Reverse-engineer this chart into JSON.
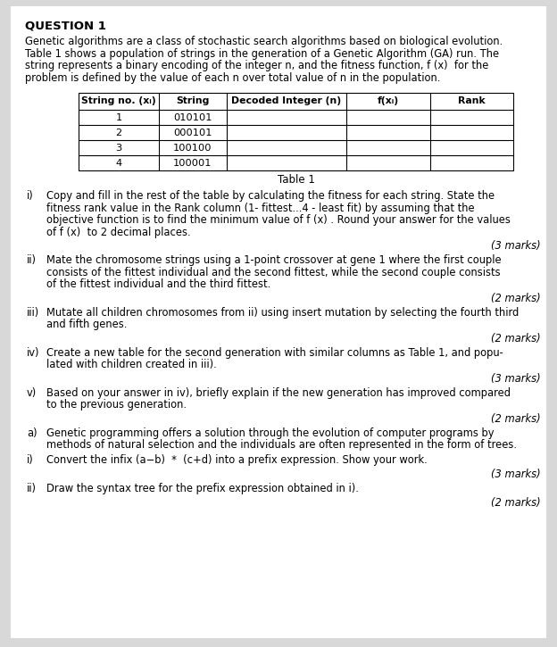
{
  "bg_color": "#d8d8d8",
  "content_bg": "#ffffff",
  "title": "QUESTION 1",
  "intro_lines": [
    "Genetic algorithms are a class of stochastic search algorithms based on biological evolution.",
    "Table 1 shows a population of strings in the generation of a Genetic Algorithm (GA) run. The",
    "string represents a binary encoding of the integer n, and the fitness function, f (x)  for the",
    "problem is defined by the value of each n over total value of n in the population."
  ],
  "table_headers": [
    "String no. (xᵢ)",
    "String",
    "Decoded Integer (n)",
    "f(xᵢ)",
    "Rank"
  ],
  "table_rows": [
    [
      "1",
      "010101",
      "",
      "",
      ""
    ],
    [
      "2",
      "000101",
      "",
      "",
      ""
    ],
    [
      "3",
      "100100",
      "",
      "",
      ""
    ],
    [
      "4",
      "100001",
      "",
      "",
      ""
    ]
  ],
  "table_caption": "Table 1",
  "questions": [
    {
      "label": "i)",
      "lines": [
        "Copy and fill in the rest of the table by calculating the fitness for each string. State the",
        "fitness rank value in the Rank column (1- fittest...4 - least fit) by assuming that the",
        "objective function is to find the minimum value of f (x) . Round your answer for the values",
        "of f (x)  to 2 decimal places."
      ],
      "marks": "(3 marks)"
    },
    {
      "label": "ii)",
      "lines": [
        "Mate the chromosome strings using a 1-point crossover at gene 1 where the first couple",
        "consists of the fittest individual and the second fittest, while the second couple consists",
        "of the fittest individual and the third fittest."
      ],
      "marks": "(2 marks)"
    },
    {
      "label": "iii)",
      "lines": [
        "Mutate all children chromosomes from ii) using insert mutation by selecting the fourth third",
        "and fifth genes."
      ],
      "marks": "(2 marks)"
    },
    {
      "label": "iv)",
      "lines": [
        "Create a new table for the second generation with similar columns as Table 1, and popu-",
        "lated with children created in iii)."
      ],
      "marks": "(3 marks)"
    },
    {
      "label": "v)",
      "lines": [
        "Based on your answer in iv), briefly explain if the new generation has improved compared",
        "to the previous generation."
      ],
      "marks": "(2 marks)"
    }
  ],
  "part_a": {
    "label": "a)",
    "lines": [
      "Genetic programming offers a solution through the evolution of computer programs by",
      "methods of natural selection and the individuals are often represented in the form of trees."
    ]
  },
  "part_a_questions": [
    {
      "label": "i)",
      "lines": [
        "Convert the infix (a−b)  *  (c+d) into a prefix expression. Show your work."
      ],
      "marks": "(3 marks)"
    },
    {
      "label": "ii)",
      "lines": [
        "Draw the syntax tree for the prefix expression obtained in i)."
      ],
      "marks": "(2 marks)"
    }
  ]
}
